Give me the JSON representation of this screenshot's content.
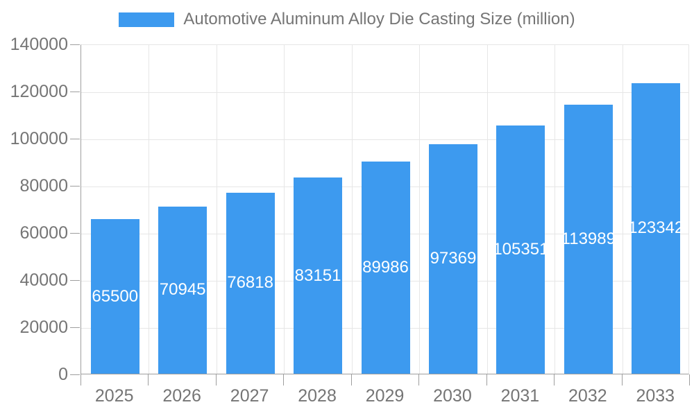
{
  "legend": {
    "label": "Automotive Aluminum Alloy Die Casting Size (million)"
  },
  "colors": {
    "bar": "#3d9aef",
    "grid": "#e6e6e6",
    "axis": "#9e9e9e",
    "text": "#757575",
    "value_label": "#ffffff",
    "background": "#ffffff"
  },
  "chart_data": {
    "type": "bar",
    "title": "Automotive Aluminum Alloy Die Casting Size (million)",
    "categories": [
      "2025",
      "2026",
      "2027",
      "2028",
      "2029",
      "2030",
      "2031",
      "2032",
      "2033"
    ],
    "values": [
      65500,
      70945,
      76818,
      83151,
      89986,
      97369,
      105351,
      113989,
      123342
    ],
    "xlabel": "",
    "ylabel": "",
    "ylim": [
      0,
      140000
    ],
    "yticks": [
      0,
      20000,
      40000,
      60000,
      80000,
      100000,
      120000,
      140000
    ],
    "grid": true,
    "legend_position": "top-center",
    "value_labels": "inside-center-white"
  }
}
